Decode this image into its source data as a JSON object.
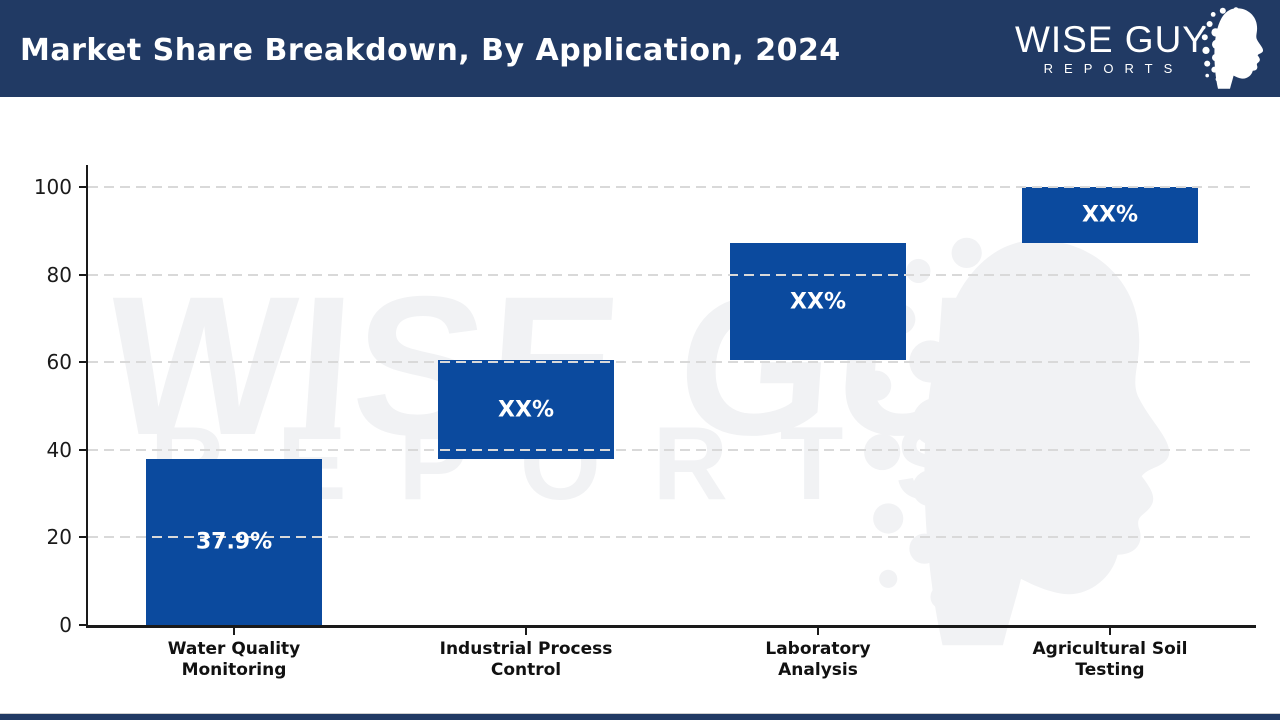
{
  "header": {
    "title": "Market Share Breakdown, By Application, 2024",
    "logo": {
      "line1": "WISE GUY",
      "line2": "REPORTS"
    }
  },
  "watermark": {
    "line1": "WISE GUY",
    "line2": "REPORTS"
  },
  "chart_data": {
    "type": "bar",
    "subtype": "waterfall-stepped",
    "title": "Market Share Breakdown, By Application, 2024",
    "xlabel": "",
    "ylabel": "",
    "ylim": [
      0,
      100
    ],
    "yticks": [
      0,
      20,
      40,
      60,
      80,
      100
    ],
    "grid": "horizontal-dashed",
    "legend": "none",
    "categories": [
      "Water Quality Monitoring",
      "Industrial Process Control",
      "Laboratory Analysis",
      "Agricultural Soil Testing"
    ],
    "segments": [
      {
        "start": 0,
        "end": 37.9,
        "label": "37.9%"
      },
      {
        "start": 37.9,
        "end": 60.5,
        "label": "XX%"
      },
      {
        "start": 60.5,
        "end": 87.2,
        "label": "XX%"
      },
      {
        "start": 87.2,
        "end": 100,
        "label": "XX%"
      }
    ]
  },
  "colors": {
    "header_navy": "#213a64",
    "bar_blue": "#0b4a9e",
    "bar_label_white": "#ffffff",
    "grid_gray": "#d9d9d9",
    "axis_black": "#1a1a1a",
    "watermark_gray": "#f1f2f4"
  }
}
